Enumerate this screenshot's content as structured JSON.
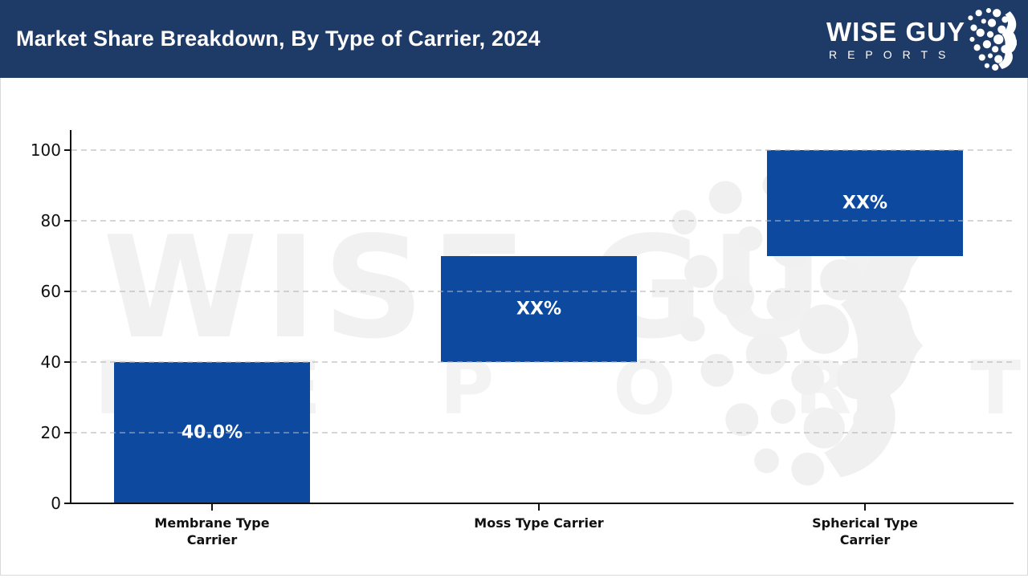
{
  "header": {
    "title": "Market Share Breakdown, By Type of Carrier, 2024",
    "logo": {
      "line1": "WISE GUY",
      "line2": "REPORTS"
    }
  },
  "watermark": {
    "line1": "WISE GUY",
    "line2": "R E P O R T S"
  },
  "chart_data": {
    "type": "bar",
    "subtype": "floating-waterfall",
    "title": "Market Share Breakdown, By Type of Carrier, 2024",
    "categories": [
      "Membrane Type\nCarrier",
      "Moss Type Carrier",
      "Spherical Type\nCarrier"
    ],
    "series": [
      {
        "name": "Market Share",
        "ranges": [
          [
            0,
            40
          ],
          [
            40,
            70
          ],
          [
            70,
            100
          ]
        ]
      }
    ],
    "bar_labels": [
      "40.0%",
      "XX%",
      "XX%"
    ],
    "yticks": [
      0,
      20,
      40,
      60,
      80,
      100
    ],
    "ylim": [
      0,
      105
    ],
    "grid": "horizontal-dashed",
    "legend": "none",
    "bar_color": "#0d4a9f",
    "label_color": "#ffffff",
    "axis_color": "#111111"
  }
}
